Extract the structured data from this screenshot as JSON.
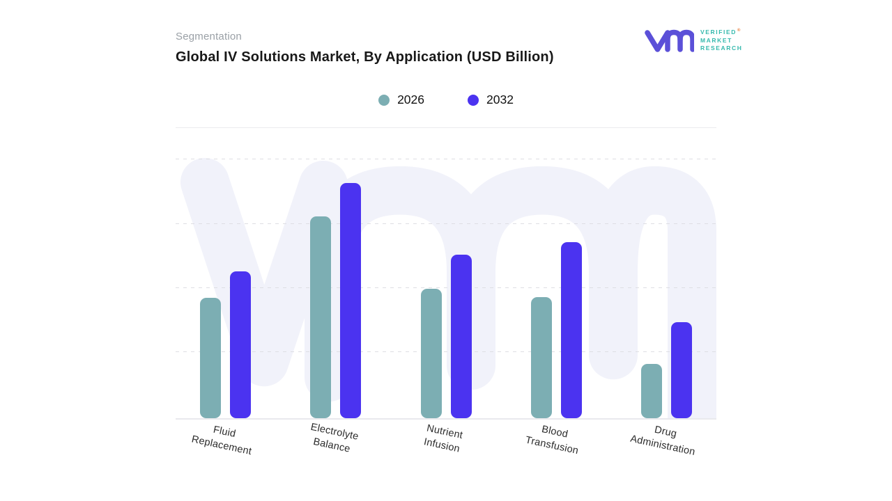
{
  "header": {
    "eyebrow": "Segmentation",
    "title": "Global IV Solutions Market, By Application  (USD Billion)"
  },
  "brand": {
    "name": "Verified Market Research logo",
    "lines": [
      "VERIFIED",
      "MARKET",
      "RESEARCH"
    ],
    "registered_mark": "®",
    "glyph_color": "#5b50d8",
    "text_color": "#35b9ad",
    "registered_color": "#e87d3c"
  },
  "legend": [
    {
      "label": "2026",
      "color": "#7caeb3"
    },
    {
      "label": "2032",
      "color": "#4b33f0"
    }
  ],
  "colors": {
    "series_2026": "#7caeb3",
    "series_2032": "#4b33f0",
    "watermark": "#f1f2fa",
    "gridline": "#dedee3",
    "axis_line": "#e9e9ed",
    "title_text": "#181818",
    "eyebrow_text": "#9aa0a6"
  },
  "chart_data": {
    "type": "bar",
    "title": "Global IV Solutions Market, By Application (USD Billion)",
    "subtitle": "Segmentation",
    "unit": "USD Billion",
    "categories": [
      "Fluid Replacement",
      "Electrolyte Balance",
      "Nutrient Infusion",
      "Blood Transfusion",
      "Drug Administration"
    ],
    "category_lines": [
      [
        "Fluid",
        "Replacement"
      ],
      [
        "Electrolyte",
        "Balance"
      ],
      [
        "Nutrient",
        "Infusion"
      ],
      [
        "Blood",
        "Transfusion"
      ],
      [
        "Drug",
        "Administration"
      ]
    ],
    "series": [
      {
        "name": "2026",
        "color": "#7caeb3",
        "values_est_gridline_units": [
          1.9,
          3.1,
          2.0,
          1.9,
          0.85
        ],
        "bar_height_pct_of_plot": [
          45.7,
          76.4,
          49.1,
          45.9,
          20.7
        ]
      },
      {
        "name": "2032",
        "color": "#4b33f0",
        "values_est_gridline_units": [
          2.3,
          3.65,
          2.55,
          2.75,
          1.5
        ],
        "bar_height_pct_of_plot": [
          55.6,
          89.2,
          61.9,
          66.7,
          36.5
        ]
      }
    ],
    "y_axis": {
      "tick_labels_visible": false,
      "gridlines": "4 dashed horizontal lines, unlabeled",
      "gridline_positions_pct_from_top": [
        1.6,
        26.0,
        50.4,
        74.8
      ]
    },
    "x_axis": {
      "label_rotation_deg": 12
    },
    "legend_position": "top-center",
    "grid": "horizontal dashed only"
  }
}
